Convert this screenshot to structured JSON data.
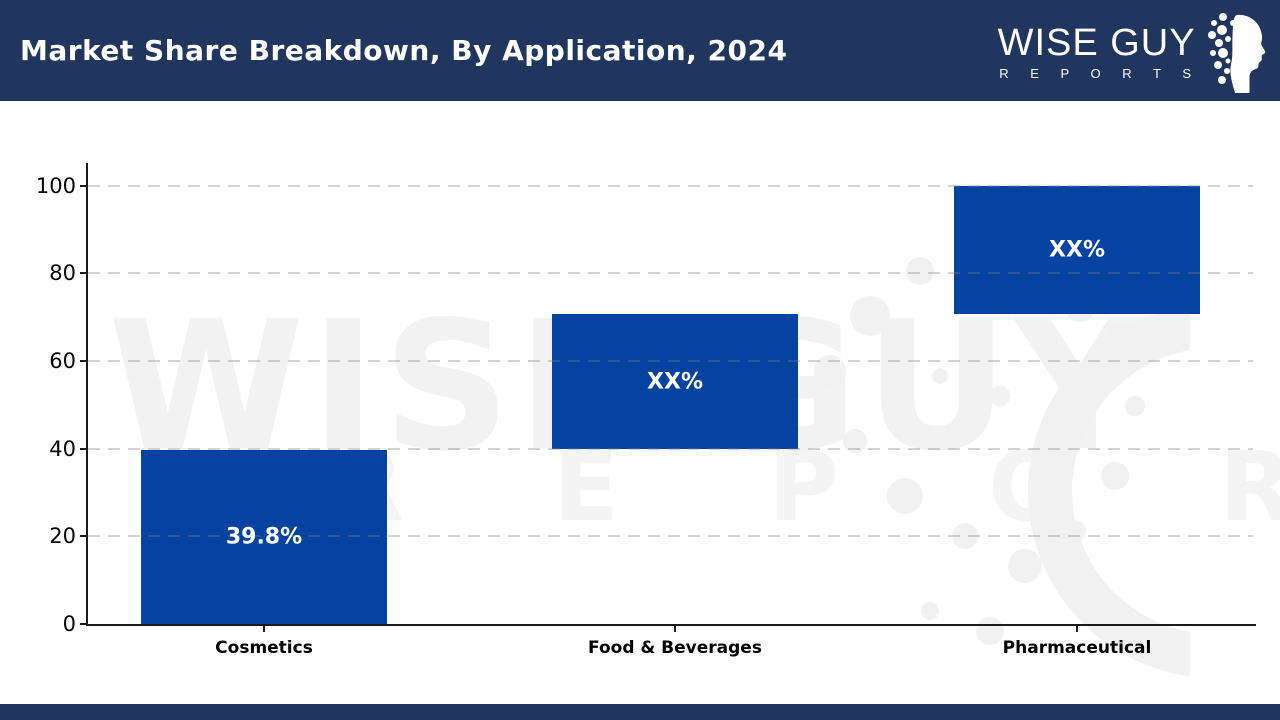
{
  "header": {
    "title": "Market Share Breakdown, By Application, 2024",
    "logo": {
      "wordmark": "WISE GUY",
      "subtext": "R E P O R T S"
    }
  },
  "watermark": {
    "wordmark": "WISE GUY",
    "subtext": "R E P O R T S"
  },
  "colors": {
    "header_bg": "#21365F",
    "footer_bg": "#21365F",
    "bar": "#0443A0",
    "bar_label": "#FFFFFF",
    "grid": "#D3D3D3",
    "axis": "#1A1A1A",
    "tick_label": "#000000",
    "watermark": "#F2F2F2"
  },
  "chart_data": {
    "type": "bar",
    "variant": "waterfall-floating-bars",
    "title": "Market Share Breakdown, By Application, 2024",
    "xlabel": "",
    "ylabel": "",
    "categories": [
      "Cosmetics",
      "Food & Beverages",
      "Pharmaceutical"
    ],
    "bars": [
      {
        "category": "Cosmetics",
        "label": "39.8%",
        "from": 0,
        "to": 39.8
      },
      {
        "category": "Food & Beverages",
        "label": "XX%",
        "from": 40,
        "to": 70.6
      },
      {
        "category": "Pharmaceutical",
        "label": "XX%",
        "from": 70.6,
        "to": 100
      }
    ],
    "yticks": [
      0,
      20,
      40,
      60,
      80,
      100
    ],
    "ylim": [
      0,
      105.5
    ],
    "grid": "dashed-horizontal",
    "legend": "none"
  }
}
